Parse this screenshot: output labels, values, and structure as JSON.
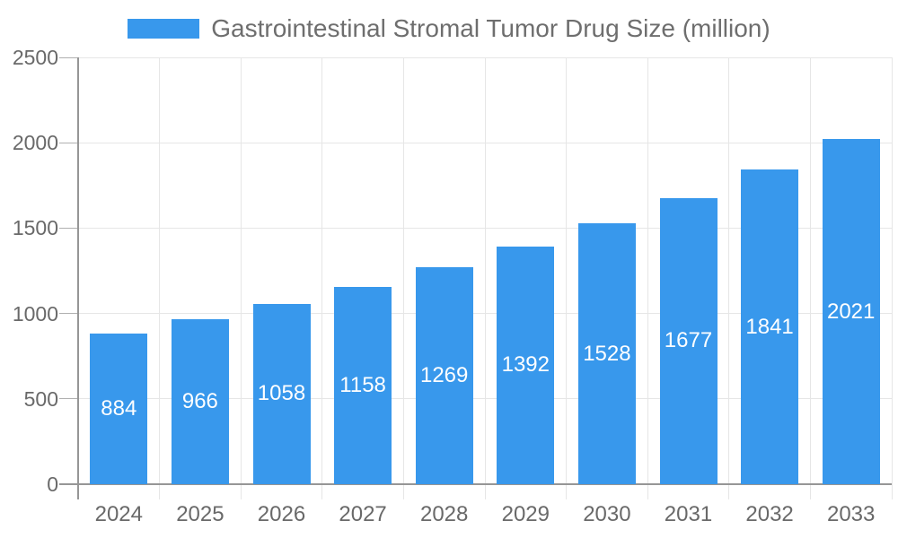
{
  "legend": {
    "label": "Gastrointestinal Stromal Tumor Drug Size (million)"
  },
  "chart_data": {
    "type": "bar",
    "title": "Gastrointestinal Stromal Tumor Drug Size (million)",
    "categories": [
      "2024",
      "2025",
      "2026",
      "2027",
      "2028",
      "2029",
      "2030",
      "2031",
      "2032",
      "2033"
    ],
    "values": [
      884,
      966,
      1058,
      1158,
      1269,
      1392,
      1528,
      1677,
      1841,
      2021
    ],
    "xlabel": "",
    "ylabel": "",
    "ylim": [
      0,
      2500
    ],
    "yticks": [
      0,
      500,
      1000,
      1500,
      2000,
      2500
    ],
    "grid": true,
    "legend_position": "top",
    "value_labels": "inside-center"
  },
  "colors": {
    "bar": "#3898EC",
    "grid": "#e6e6e6",
    "axis": "#969696",
    "tick": "#b0b0b0",
    "axis_label": "#696969",
    "legend_text": "#6e6e6e",
    "value_label": "#ffffff"
  }
}
